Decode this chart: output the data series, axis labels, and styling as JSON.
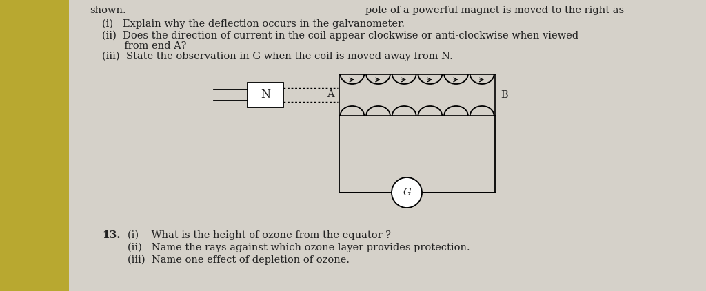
{
  "bg_left_color": "#c8b84a",
  "bg_page_color": "#d8d4cc",
  "text_color": "#222222",
  "font_size": 10.5,
  "lines_i": "(i)   Explain why the deflection occurs in the galvanometer.",
  "lines_ii_a": "(ii)  Does the direction of current in the coil appear clockwise or anti-clockwise when viewed",
  "lines_ii_b": "       from end A?",
  "lines_iii": "(iii)  State the observation in G when the coil is moved away from N.",
  "top_left": "shown.",
  "top_right": "pole of a powerful magnet is moved to the right as",
  "q13_label": "13.",
  "q13_i": "(i)    What is the height of ozone from the equator ?",
  "q13_ii": "(ii)   Name the rays against which ozone layer provides protection.",
  "q13_iii": "(iii)  Name one effect of depletion of ozone.",
  "mag_label": "N",
  "label_A": "A",
  "label_B": "B",
  "label_G": "G",
  "num_loops": 6
}
